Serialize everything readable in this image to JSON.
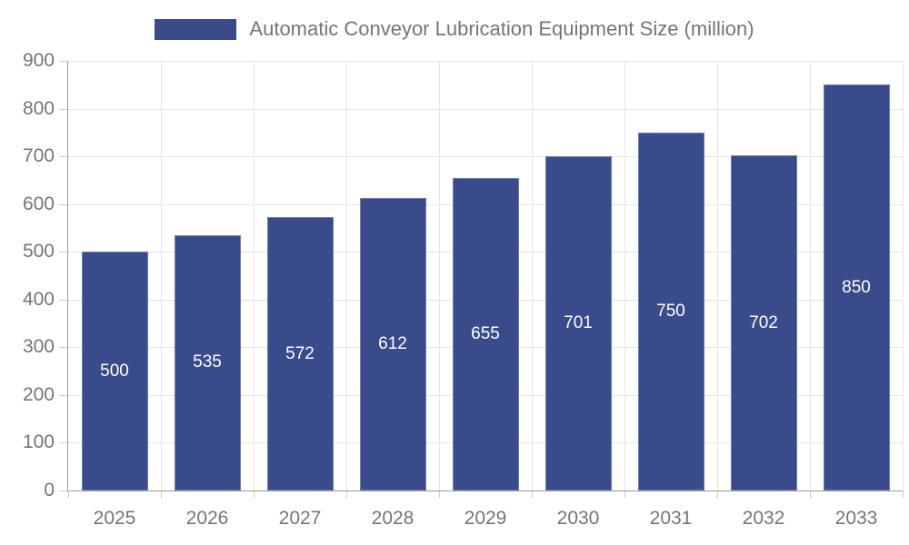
{
  "legend": {
    "label": "Automatic Conveyor Lubrication Equipment Size (million)"
  },
  "chart_data": {
    "type": "bar",
    "title": "",
    "series_name": "Automatic Conveyor Lubrication Equipment Size (million)",
    "categories": [
      "2025",
      "2026",
      "2027",
      "2028",
      "2029",
      "2030",
      "2031",
      "2032",
      "2033"
    ],
    "values": [
      500,
      535,
      572,
      612,
      655,
      701,
      750,
      702,
      850
    ],
    "xlabel": "",
    "ylabel": "",
    "ylim": [
      0,
      900
    ],
    "yticks": [
      0,
      100,
      200,
      300,
      400,
      500,
      600,
      700,
      800,
      900
    ],
    "grid": true,
    "legend_position": "top-center",
    "value_labels": "inside-middle",
    "style": {
      "bar_color": "#3A4B8C",
      "bar_border_color": "#6B7BB4",
      "value_label_color": "#FFFFFF",
      "axis_line_color": "#9A9A9A",
      "grid_color": "#E6E6E6",
      "tick_color": "#CCCCCC",
      "tick_label_color": "#757575",
      "legend_text_color": "#757575"
    }
  }
}
